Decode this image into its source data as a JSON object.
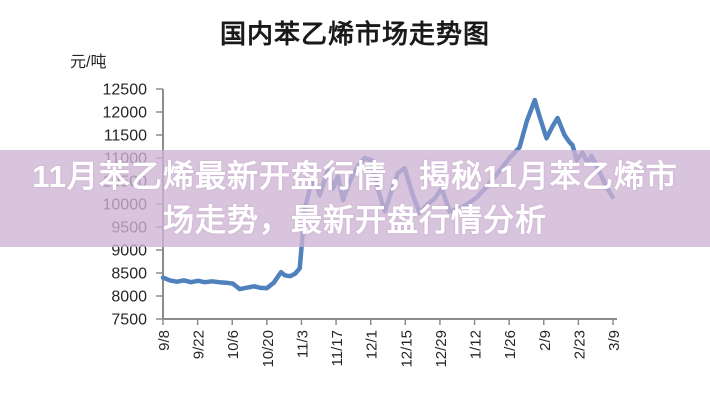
{
  "title": "国内苯乙烯市场走势图",
  "y_axis_unit": "元/吨",
  "overlay": {
    "lines": [
      "11月苯乙烯最新开盘行情，揭秘11月苯乙烯市",
      "场走势，最新开盘行情分析"
    ],
    "bg_color": "#d3b9d8",
    "text_color": "#ffffff"
  },
  "chart_data": {
    "type": "line",
    "title": "国内苯乙烯市场走势图",
    "xlabel": "",
    "ylabel": "元/吨",
    "ylim": [
      7500,
      12500
    ],
    "y_ticks": [
      7500,
      8000,
      8500,
      9000,
      9500,
      10000,
      10500,
      11000,
      11500,
      12000,
      12500
    ],
    "x_tick_labels": [
      "9/8",
      "9/22",
      "10/6",
      "10/20",
      "11/3",
      "11/17",
      "12/1",
      "12/15",
      "12/29",
      "1/12",
      "1/26",
      "2/9",
      "2/23",
      "3/9"
    ],
    "x_unit": "tick_index",
    "grid": false,
    "legend": "none",
    "line_color": "#4f81bd",
    "axis_color": "#8c8c8c",
    "label_color": "#262626",
    "series": [
      {
        "points": [
          [
            0.0,
            8400
          ],
          [
            0.2,
            8340
          ],
          [
            0.4,
            8310
          ],
          [
            0.61,
            8340
          ],
          [
            0.81,
            8300
          ],
          [
            1.01,
            8330
          ],
          [
            1.21,
            8300
          ],
          [
            1.41,
            8320
          ],
          [
            1.62,
            8300
          ],
          [
            1.82,
            8290
          ],
          [
            2.02,
            8270
          ],
          [
            2.22,
            8150
          ],
          [
            2.42,
            8180
          ],
          [
            2.63,
            8210
          ],
          [
            2.8,
            8180
          ],
          [
            3.0,
            8170
          ],
          [
            3.2,
            8290
          ],
          [
            3.41,
            8520
          ],
          [
            3.52,
            8450
          ],
          [
            3.67,
            8430
          ],
          [
            3.81,
            8480
          ],
          [
            3.95,
            8600
          ],
          [
            4.1,
            9900
          ],
          [
            4.24,
            10340
          ],
          [
            4.39,
            10520
          ],
          [
            4.53,
            10190
          ],
          [
            4.76,
            10740
          ],
          [
            4.91,
            10340
          ],
          [
            5.05,
            10600
          ],
          [
            5.2,
            10080
          ],
          [
            5.4,
            10500
          ],
          [
            5.63,
            10820
          ],
          [
            5.83,
            11000
          ],
          [
            6.03,
            10950
          ],
          [
            6.2,
            10340
          ],
          [
            6.41,
            9840
          ],
          [
            6.61,
            10300
          ],
          [
            6.78,
            10670
          ],
          [
            6.98,
            10780
          ],
          [
            7.22,
            10190
          ],
          [
            7.42,
            9800
          ],
          [
            7.65,
            10000
          ],
          [
            7.85,
            10120
          ],
          [
            8.05,
            10340
          ],
          [
            8.28,
            9840
          ],
          [
            8.57,
            9900
          ],
          [
            8.8,
            10000
          ],
          [
            9.06,
            10140
          ],
          [
            9.38,
            10400
          ],
          [
            9.73,
            10730
          ],
          [
            10.01,
            11000
          ],
          [
            10.3,
            11230
          ],
          [
            10.51,
            11800
          ],
          [
            10.74,
            12260
          ],
          [
            10.88,
            11900
          ],
          [
            11.08,
            11430
          ],
          [
            11.26,
            11700
          ],
          [
            11.4,
            11870
          ],
          [
            11.6,
            11500
          ],
          [
            11.75,
            11340
          ],
          [
            11.83,
            11280
          ],
          [
            11.95,
            10950
          ],
          [
            12.12,
            11120
          ],
          [
            12.27,
            10880
          ],
          [
            12.38,
            11050
          ],
          [
            12.61,
            10700
          ],
          [
            12.79,
            10400
          ],
          [
            12.99,
            10150
          ]
        ]
      }
    ]
  }
}
